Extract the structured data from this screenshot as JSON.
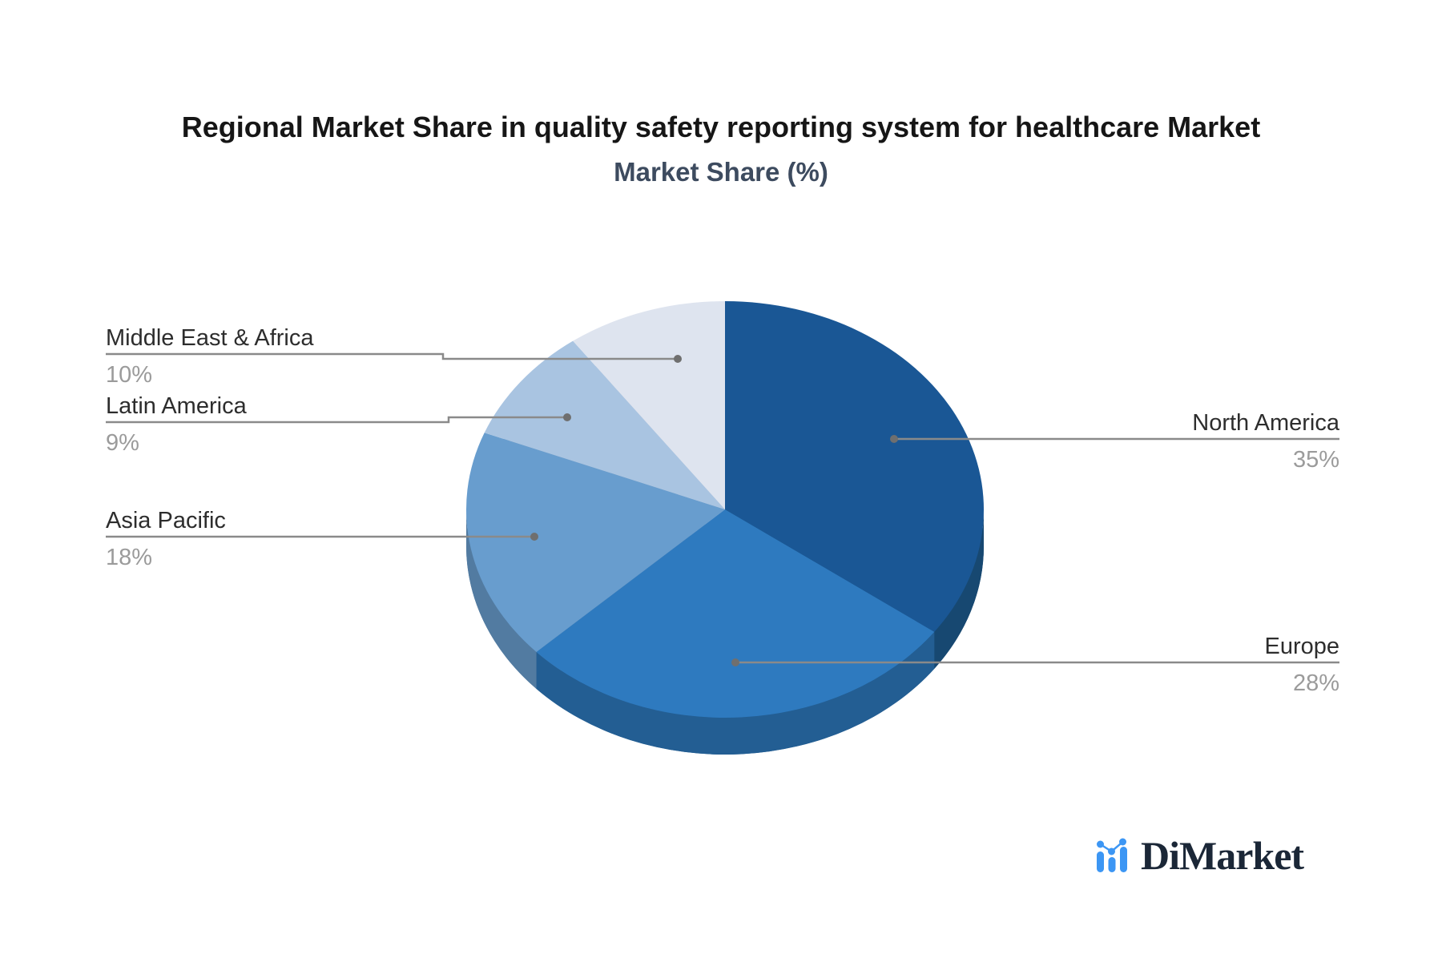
{
  "header": {
    "title": "Regional Market Share in quality safety reporting system for healthcare Market",
    "subtitle": "Market Share (%)"
  },
  "chart_data": {
    "type": "pie",
    "style": "3d-pie",
    "title": "Regional Market Share in quality safety reporting system for healthcare Market",
    "subtitle": "Market Share (%)",
    "unit": "%",
    "direction": "clockwise",
    "start_angle_deg": 0,
    "categories": [
      "North America",
      "Europe",
      "Asia Pacific",
      "Latin America",
      "Middle East & Africa"
    ],
    "values": [
      35,
      28,
      18,
      9,
      10
    ],
    "display_values": [
      "35%",
      "28%",
      "18%",
      "9%",
      "10%"
    ],
    "colors": [
      "#1A5795",
      "#2E7ABF",
      "#689DCE",
      "#A9C4E1",
      "#DEE4EF"
    ],
    "side_colors": [
      "#174871",
      "#235E93",
      "#527BA1",
      "#84A0BF",
      "#B5C1D4"
    ],
    "legend_position": "callouts",
    "grid": false,
    "callout_line_color": "#8A8A8A",
    "callout_dot_color": "#6F6F6F",
    "label_color": "#2D2D2D",
    "value_color": "#9B9B9B"
  },
  "callouts": [
    {
      "label": "North America",
      "value": "35%",
      "side": "right"
    },
    {
      "label": "Europe",
      "value": "28%",
      "side": "right"
    },
    {
      "label": "Asia Pacific",
      "value": "18%",
      "side": "left"
    },
    {
      "label": "Latin America",
      "value": "9%",
      "side": "left"
    },
    {
      "label": "Middle East & Africa",
      "value": "10%",
      "side": "left"
    }
  ],
  "branding": {
    "name": "DiMarket",
    "icon": "bar-chart-trend-icon",
    "icon_color": "#3C96F4",
    "text_color": "#1B2737"
  }
}
